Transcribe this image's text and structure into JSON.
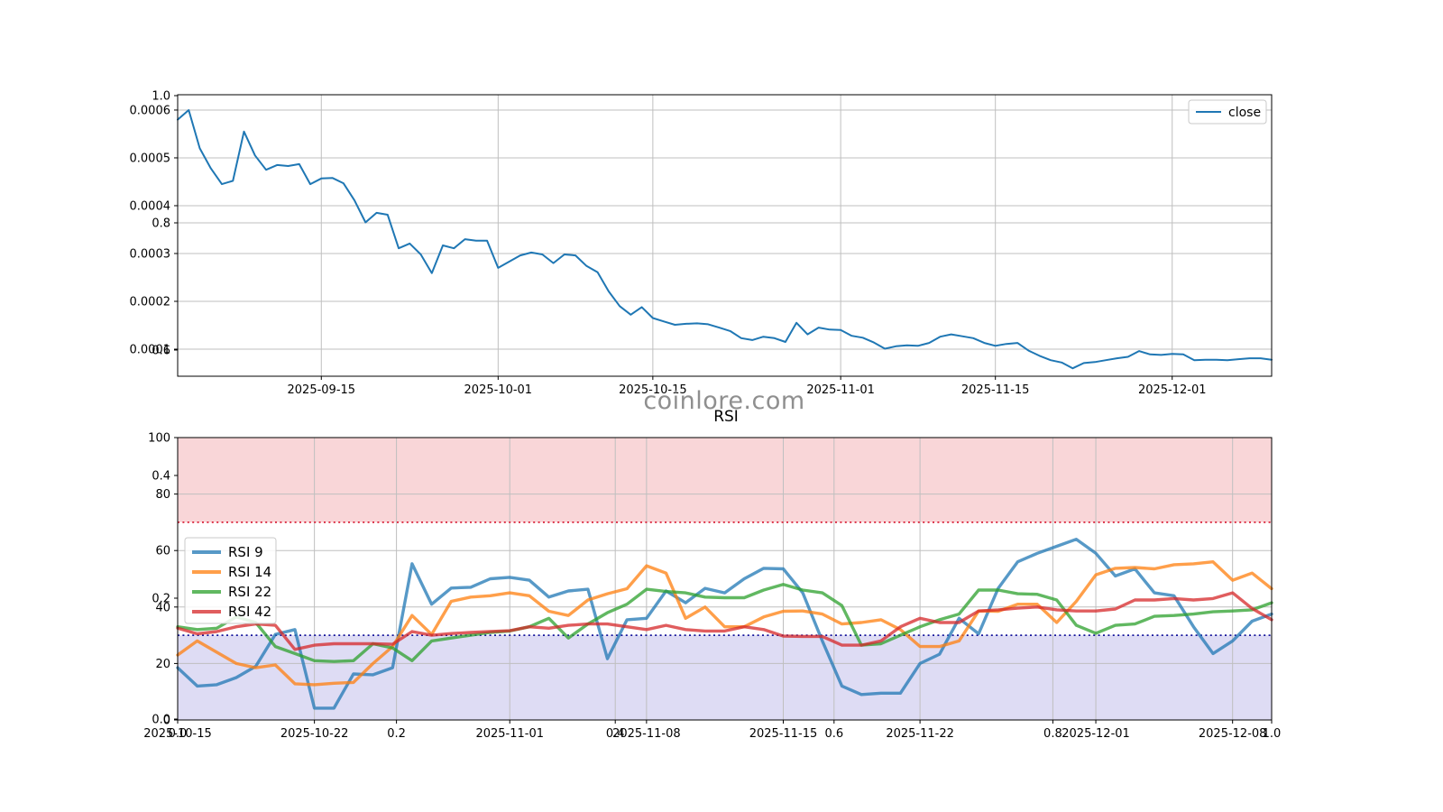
{
  "watermark": "coinlore.com",
  "rsi_title": "RSI",
  "colors": {
    "grid": "#bfbfbf",
    "spine": "#000000",
    "overbought_band": "#f9d6d8",
    "oversold_band": "#dedcf4",
    "overbought_line": "#d91e36",
    "oversold_line": "#15159b",
    "legend_border": "#c9c9c9",
    "legend_bg": "#ffffff",
    "watermark_color": "#8f8f8f"
  },
  "chart_data": [
    {
      "type": "line",
      "panel": "price",
      "x_start": "2025-09-02",
      "x_end": "2025-12-10",
      "x_interval": "daily",
      "ylim": [
        4.34e-05,
        0.000632
      ],
      "grid": true,
      "y_ticks": [
        {
          "label": "0.0006",
          "value": 0.0006
        },
        {
          "label": "0.0005",
          "value": 0.0005
        },
        {
          "label": "0.0004",
          "value": 0.0004
        },
        {
          "label": "0.0003",
          "value": 0.0003
        },
        {
          "label": "0.0002",
          "value": 0.0002
        },
        {
          "label": "0.0001",
          "value": 0.0001
        }
      ],
      "secondary_y_tick_labels": [
        "1.0",
        "0.8",
        "0.6",
        "0.4",
        "0.2",
        "0.0"
      ],
      "x_ticks": [
        {
          "label": "2025-09-15",
          "day": 13
        },
        {
          "label": "2025-10-01",
          "day": 29
        },
        {
          "label": "2025-10-15",
          "day": 43
        },
        {
          "label": "2025-11-01",
          "day": 60
        },
        {
          "label": "2025-11-15",
          "day": 74
        },
        {
          "label": "2025-12-01",
          "day": 90
        }
      ],
      "legend": {
        "position": "top-right",
        "entries": [
          "close"
        ]
      },
      "series": [
        {
          "name": "close",
          "color": "#1f77b4",
          "opacity": 1,
          "width": 2,
          "values": [
            0.00058,
            0.0006,
            0.00052,
            0.000478,
            0.000445,
            0.000452,
            0.000555,
            0.000505,
            0.000475,
            0.000485,
            0.000483,
            0.000487,
            0.000445,
            0.000457,
            0.000458,
            0.000447,
            0.000411,
            0.000365,
            0.000385,
            0.000381,
            0.000311,
            0.000321,
            0.000298,
            0.000259,
            0.000317,
            0.000311,
            0.00033,
            0.000327,
            0.000327,
            0.00027,
            0.000283,
            0.000296,
            0.000302,
            0.000298,
            0.00028,
            0.000298,
            0.000296,
            0.000274,
            0.000261,
            0.000221,
            0.00019,
            0.000172,
            0.000188,
            0.000165,
            0.000158,
            0.000151,
            0.000153,
            0.000154,
            0.000152,
            0.000145,
            0.000138,
            0.000123,
            0.000119,
            0.000126,
            0.000123,
            0.000115,
            0.000155,
            0.000131,
            0.000145,
            0.000141,
            0.00014,
            0.000128,
            0.000124,
            0.000114,
            0.000101,
            0.000106,
            0.000108,
            0.000107,
            0.000113,
            0.000126,
            0.000131,
            0.000127,
            0.000123,
            0.000113,
            0.000107,
            0.000111,
            0.000113,
            9.7e-05,
            8.6e-05,
            7.7e-05,
            7.2e-05,
            6e-05,
            7.1e-05,
            7.3e-05,
            7.7e-05,
            8.1e-05,
            8.4e-05,
            9.6e-05,
            8.9e-05,
            8.8e-05,
            9e-05,
            8.9e-05,
            7.7e-05,
            7.8e-05,
            7.8e-05,
            7.7e-05,
            7.9e-05,
            8.1e-05,
            8.1e-05,
            7.8e-05
          ]
        }
      ]
    },
    {
      "type": "line",
      "panel": "rsi",
      "title": "RSI",
      "x_start": "2025-10-15",
      "x_end": "2025-12-10",
      "x_interval": "daily",
      "ylim": [
        0,
        100
      ],
      "grid": true,
      "y_ticks": [
        {
          "label": "100",
          "value": 100
        },
        {
          "label": "80",
          "value": 80
        },
        {
          "label": "60",
          "value": 60
        },
        {
          "label": "40",
          "value": 40
        },
        {
          "label": "20",
          "value": 20
        },
        {
          "label": "0",
          "value": 0
        }
      ],
      "x_ticks": [
        {
          "label": "2025-10-15",
          "day": 0
        },
        {
          "label": "2025-10-22",
          "day": 7
        },
        {
          "label": "2025-11-01",
          "day": 17
        },
        {
          "label": "2025-11-08",
          "day": 24
        },
        {
          "label": "2025-11-15",
          "day": 31
        },
        {
          "label": "2025-11-22",
          "day": 38
        },
        {
          "label": "2025-12-01",
          "day": 47
        },
        {
          "label": "2025-12-08",
          "day": 54
        }
      ],
      "fraction_x_tick_labels": [
        "0.0",
        "0.2",
        "0.4",
        "0.6",
        "0.8",
        "1.0"
      ],
      "bands": [
        {
          "from": 70,
          "to": 100,
          "role": "overbought"
        },
        {
          "from": 0,
          "to": 30,
          "role": "oversold"
        }
      ],
      "hlines": [
        {
          "value": 70,
          "role": "overbought",
          "style": "dotted"
        },
        {
          "value": 30,
          "role": "oversold",
          "style": "dotted"
        }
      ],
      "legend": {
        "position": "left",
        "entries": [
          "RSI 9",
          "RSI 14",
          "RSI 22",
          "RSI 42"
        ]
      },
      "series": [
        {
          "name": "RSI 9",
          "color": "#1f77b4",
          "opacity": 0.75,
          "width": 3.4,
          "values": [
            18.5,
            12,
            12.5,
            15,
            19,
            30.3,
            32,
            4.2,
            4.2,
            16.3,
            16,
            18.5,
            55.3,
            41,
            46.7,
            47,
            50,
            50.5,
            49.5,
            43.5,
            45.7,
            46.3,
            21.7,
            35.5,
            36,
            45.7,
            41.5,
            46.6,
            45,
            50,
            53.7,
            53.5,
            45,
            28,
            12,
            9,
            9.5,
            9.5,
            20,
            23.3,
            36,
            30.5,
            46.6,
            56,
            59,
            61.5,
            64,
            59,
            51,
            53.5,
            45,
            44,
            33,
            23.5,
            28,
            35,
            37.5
          ]
        },
        {
          "name": "RSI 14",
          "color": "#ff7f0e",
          "opacity": 0.75,
          "width": 3.4,
          "values": [
            23,
            28,
            24,
            20,
            18.5,
            19.5,
            12.8,
            12.5,
            13,
            13.3,
            20,
            26,
            37,
            30.3,
            42,
            43.5,
            44,
            45,
            44,
            38.5,
            37,
            42.5,
            44.7,
            46.5,
            54.6,
            52,
            36,
            40,
            33,
            33,
            36.5,
            38.5,
            38.6,
            37.5,
            34,
            34.5,
            35.5,
            32,
            26,
            26,
            28,
            38.6,
            38.5,
            41,
            41,
            34.5,
            42,
            51.4,
            53.7,
            54,
            53.5,
            55,
            55.3,
            56,
            49.5,
            52,
            46.5
          ]
        },
        {
          "name": "RSI 22",
          "color": "#2ca02c",
          "opacity": 0.75,
          "width": 3.4,
          "values": [
            33,
            32,
            32.5,
            36.5,
            34.5,
            26,
            23.5,
            21,
            20.7,
            21,
            27,
            25.5,
            21,
            28,
            29,
            30,
            31,
            31.5,
            33,
            36,
            29,
            34,
            38,
            41,
            46.3,
            45.5,
            45,
            43.5,
            43.3,
            43.3,
            46,
            48,
            46,
            45,
            40.5,
            26.5,
            27,
            30,
            33,
            35.5,
            37.5,
            46,
            46,
            44.7,
            44.5,
            42.5,
            33.5,
            30.7,
            33.5,
            34,
            36.7,
            37,
            37.5,
            38.3,
            38.6,
            39,
            41.5
          ]
        },
        {
          "name": "RSI 42",
          "color": "#d62728",
          "opacity": 0.75,
          "width": 3.4,
          "values": [
            32.5,
            30.5,
            31.3,
            33,
            34,
            33.5,
            25,
            26.5,
            27,
            27,
            27,
            26.8,
            31.3,
            30,
            30.6,
            31,
            31.3,
            31.6,
            33,
            32.5,
            33.5,
            34,
            34,
            33,
            32,
            33.5,
            32,
            31.5,
            31.5,
            33,
            32,
            29.7,
            29.6,
            29.6,
            26.5,
            26.5,
            28,
            33,
            36,
            34.5,
            34.5,
            38.6,
            39,
            39.6,
            40,
            39,
            38.6,
            38.6,
            39.3,
            42.5,
            42.5,
            43,
            42.5,
            43,
            45,
            39.5,
            35.5
          ]
        }
      ]
    }
  ]
}
